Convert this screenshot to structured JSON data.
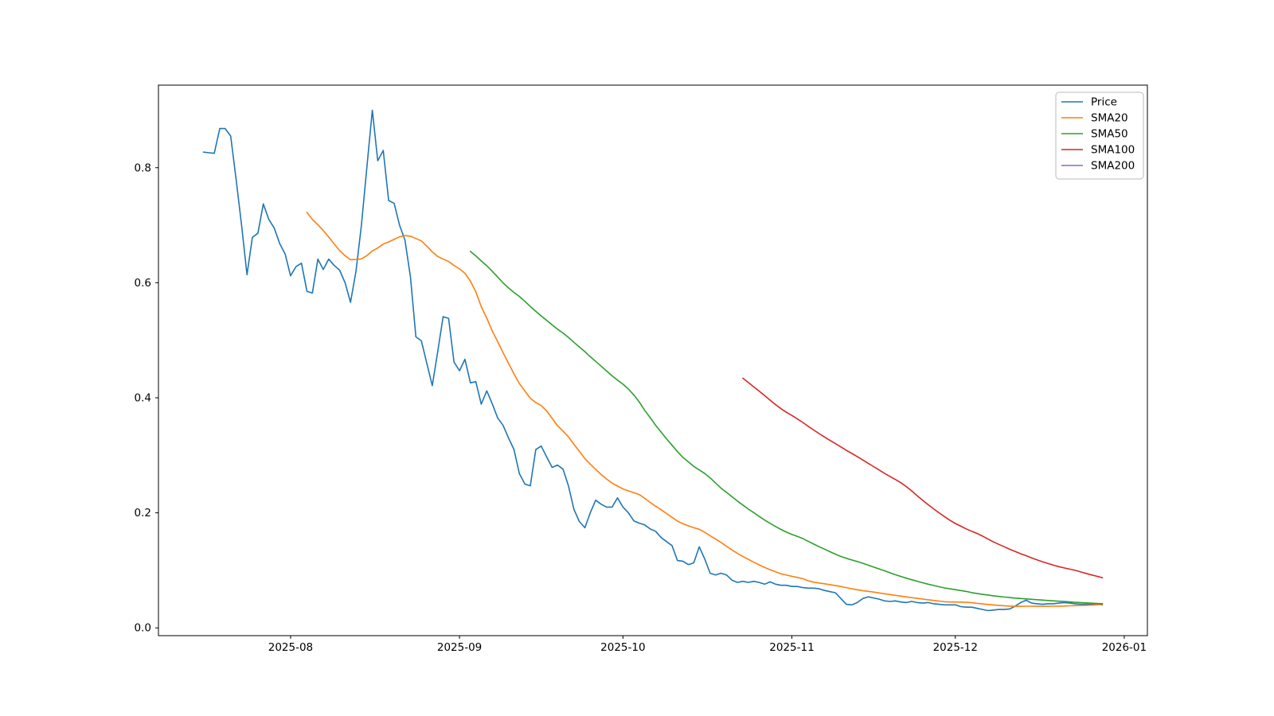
{
  "chart_data": {
    "type": "line",
    "title": "",
    "x_axis": {
      "label": "",
      "tick_labels": [
        "2025-08",
        "2025-09",
        "2025-10",
        "2025-11",
        "2025-12",
        "2026-01"
      ],
      "tick_day_offsets": [
        16,
        47,
        77,
        108,
        138,
        169
      ],
      "start_date": "2025-07-16",
      "unit": "days",
      "xlim_days": [
        -8.25,
        173.25
      ]
    },
    "y_axis": {
      "label": "",
      "tick_labels": [
        "0.0",
        "0.2",
        "0.4",
        "0.6",
        "0.8"
      ],
      "tick_values": [
        0.0,
        0.2,
        0.4,
        0.6,
        0.8
      ],
      "ylim": [
        -0.0135,
        0.9435
      ]
    },
    "legend": {
      "location": "upper right",
      "entries": [
        "Price",
        "SMA20",
        "SMA50",
        "SMA100",
        "SMA200"
      ]
    },
    "grid": false,
    "series": [
      {
        "name": "Price",
        "color": "#1f77b4",
        "kind": "price",
        "values": [
          0.827,
          0.826,
          0.825,
          0.868,
          0.868,
          0.855,
          0.78,
          0.7,
          0.614,
          0.679,
          0.686,
          0.737,
          0.71,
          0.695,
          0.668,
          0.65,
          0.612,
          0.628,
          0.634,
          0.585,
          0.582,
          0.641,
          0.623,
          0.641,
          0.63,
          0.622,
          0.6,
          0.566,
          0.62,
          0.7,
          0.8,
          0.9,
          0.812,
          0.83,
          0.743,
          0.738,
          0.7,
          0.674,
          0.61,
          0.506,
          0.499,
          0.46,
          0.421,
          0.48,
          0.541,
          0.538,
          0.462,
          0.447,
          0.467,
          0.426,
          0.428,
          0.389,
          0.412,
          0.39,
          0.365,
          0.352,
          0.33,
          0.31,
          0.268,
          0.25,
          0.247,
          0.31,
          0.316,
          0.297,
          0.279,
          0.283,
          0.276,
          0.247,
          0.206,
          0.185,
          0.174,
          0.2,
          0.222,
          0.215,
          0.21,
          0.21,
          0.226,
          0.21,
          0.2,
          0.186,
          0.182,
          0.179,
          0.172,
          0.168,
          0.157,
          0.15,
          0.143,
          0.117,
          0.116,
          0.11,
          0.113,
          0.141,
          0.12,
          0.095,
          0.092,
          0.095,
          0.092,
          0.083,
          0.079,
          0.081,
          0.079,
          0.081,
          0.079,
          0.076,
          0.08,
          0.076,
          0.074,
          0.074,
          0.072,
          0.072,
          0.07,
          0.069,
          0.069,
          0.068,
          0.065,
          0.063,
          0.061,
          0.051,
          0.041,
          0.04,
          0.044,
          0.051,
          0.054,
          0.052,
          0.05,
          0.047,
          0.046,
          0.047,
          0.045,
          0.044,
          0.046,
          0.044,
          0.043,
          0.044,
          0.042,
          0.041,
          0.04,
          0.04,
          0.04,
          0.037,
          0.036,
          0.036,
          0.034,
          0.032,
          0.03,
          0.031,
          0.032,
          0.032,
          0.033,
          0.038,
          0.044,
          0.048,
          0.043,
          0.042,
          0.041,
          0.042,
          0.042,
          0.043,
          0.044,
          0.043,
          0.042,
          0.041,
          0.041,
          0.041,
          0.041,
          0.04
        ]
      },
      {
        "name": "SMA20",
        "color": "#ff7f0e",
        "kind": "sma",
        "window": 20,
        "derived_from": "Price"
      },
      {
        "name": "SMA50",
        "color": "#2ca02c",
        "kind": "sma",
        "window": 50,
        "derived_from": "Price"
      },
      {
        "name": "SMA100",
        "color": "#d62728",
        "kind": "sma",
        "window": 100,
        "derived_from": "Price"
      },
      {
        "name": "SMA200",
        "color": "#9467bd",
        "kind": "sma",
        "window": 200,
        "derived_from": "Price"
      }
    ],
    "frame_color": "#000000",
    "legend_border_color": "#bbbbbb",
    "background_color": "#ffffff"
  }
}
